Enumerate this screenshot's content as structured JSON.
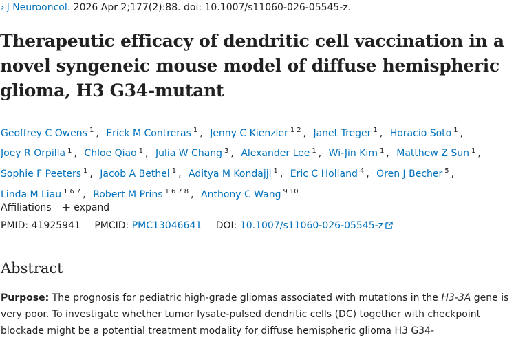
{
  "citation": {
    "prefix_icon": "chevron-right-icon",
    "journal": "J Neurooncol.",
    "details": "2026 Apr 2;177(2):88. doi: 10.1007/s11060-026-05545-z."
  },
  "title": "Therapeutic efficacy of dendritic cell vaccination in a novel syngeneic mouse model of diffuse hemispheric glioma, H3 G34-mutant",
  "authors": [
    {
      "name": "Geoffrey C Owens",
      "affils": [
        "1"
      ]
    },
    {
      "name": "Erick M Contreras",
      "affils": [
        "1"
      ]
    },
    {
      "name": "Jenny C Kienzler",
      "affils": [
        "1",
        "2"
      ]
    },
    {
      "name": "Janet Treger",
      "affils": [
        "1"
      ]
    },
    {
      "name": "Horacio Soto",
      "affils": [
        "1"
      ]
    },
    {
      "name": "Joey R Orpilla",
      "affils": [
        "1"
      ]
    },
    {
      "name": "Chloe Qiao",
      "affils": [
        "1"
      ]
    },
    {
      "name": "Julia W Chang",
      "affils": [
        "3"
      ]
    },
    {
      "name": "Alexander Lee",
      "affils": [
        "1"
      ]
    },
    {
      "name": "Wi-Jin Kim",
      "affils": [
        "1"
      ]
    },
    {
      "name": "Matthew Z Sun",
      "affils": [
        "1"
      ]
    },
    {
      "name": "Sophie F Peeters",
      "affils": [
        "1"
      ]
    },
    {
      "name": "Jacob A Bethel",
      "affils": [
        "1"
      ]
    },
    {
      "name": "Aditya M Kondajji",
      "affils": [
        "1"
      ]
    },
    {
      "name": "Eric C Holland",
      "affils": [
        "4"
      ]
    },
    {
      "name": "Oren J Becher",
      "affils": [
        "5"
      ]
    },
    {
      "name": "Linda M Liau",
      "affils": [
        "1",
        "6",
        "7"
      ]
    },
    {
      "name": "Robert M Prins",
      "affils": [
        "1",
        "6",
        "7",
        "8"
      ]
    },
    {
      "name": "Anthony C Wang",
      "affils": [
        "9",
        "10"
      ]
    }
  ],
  "affiliations": {
    "label": "Affiliations",
    "expand_icon": "plus-icon",
    "expand_label": "expand"
  },
  "ids": {
    "pmid_label": "PMID:",
    "pmid": "41925941",
    "pmcid_label": "PMCID:",
    "pmcid": "PMC13046641",
    "doi_label": "DOI:",
    "doi": "10.1007/s11060-026-05545-z",
    "doi_icon": "external-link-icon"
  },
  "abstract": {
    "heading": "Abstract",
    "purpose_label": "Purpose:",
    "text_1": " The prognosis for pediatric high-grade gliomas associated with mutations in the ",
    "gene": "H3-3A",
    "text_2": " gene is very poor. To investigate whether tumor lysate-pulsed dendritic cells (DC) together with checkpoint blockade might be a potential treatment modality for diffuse hemispheric glioma H3 G34-"
  },
  "colors": {
    "link": "#0071bc",
    "text": "#212121"
  }
}
